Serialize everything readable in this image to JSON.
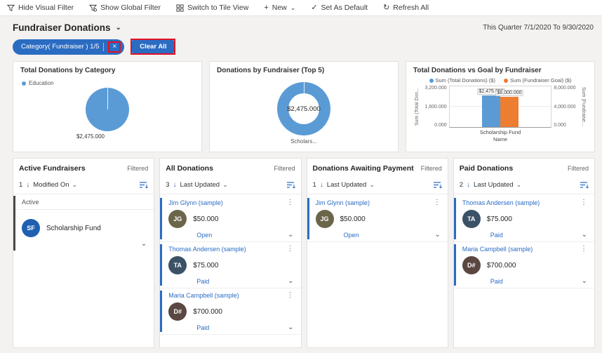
{
  "colors": {
    "accent": "#2b6cc3",
    "chart_blue": "#5b9bd5",
    "chart_orange": "#ed7d31",
    "annotation_red": "#e11123"
  },
  "icons": {
    "plus": "+",
    "check": "✓",
    "refresh": "↻",
    "chevron_down": "⌄",
    "close": "×",
    "kebab": "⋮",
    "sort_desc": "↓"
  },
  "command_bar": {
    "items": [
      {
        "label": "Hide Visual Filter"
      },
      {
        "label": "Show Global Filter"
      },
      {
        "label": "Switch to Tile View"
      },
      {
        "label": "New"
      },
      {
        "label": "Set As Default"
      },
      {
        "label": "Refresh All"
      }
    ]
  },
  "header": {
    "title": "Fundraiser Donations",
    "date_range": "This Quarter 7/1/2020 To 9/30/2020"
  },
  "filter_bar": {
    "chip": "Category( Fundraiser ) 1/5",
    "clear_all": "Clear All"
  },
  "chart_data": [
    {
      "type": "pie",
      "title": "Total Donations by Category",
      "categories": [
        "Education"
      ],
      "values": [
        2475
      ],
      "value_labels": [
        "$2,475.000"
      ],
      "legend": [
        "Education"
      ],
      "legend_position": "top-left"
    },
    {
      "type": "donut",
      "title": "Donations by Fundraiser (Top 5)",
      "categories": [
        "Scholarship Fund"
      ],
      "values": [
        2475
      ],
      "center_label": "$2,475.000",
      "x_tick_label": "Scholars..."
    },
    {
      "type": "bar",
      "title": "Total Donations vs Goal by Fundraiser",
      "categories": [
        "Scholarship Fund"
      ],
      "xlabel": "Name",
      "series": [
        {
          "name": "Sum (Total Donations) ($)",
          "values": [
            2475
          ],
          "label": "$2,475.000",
          "color": "#5b9bd5",
          "axis": "left"
        },
        {
          "name": "Sum (Fundraiser Goal) ($)",
          "values": [
            6000
          ],
          "label": "$6,000.000",
          "color": "#ed7d31",
          "axis": "right"
        }
      ],
      "left_axis": {
        "title": "Sum (Total Don...",
        "ticks": [
          "3,200.000",
          "1,600.000",
          "0.000"
        ],
        "max": 3200
      },
      "right_axis": {
        "title": "Sum (Fundraise...",
        "ticks": [
          "8,000.000",
          "4,000.000",
          "0.000"
        ],
        "max": 8000
      },
      "grid": true,
      "legend_position": "top-center"
    }
  ],
  "streams": [
    {
      "title": "Active Fundraisers",
      "filtered": "Filtered",
      "count": "1",
      "sort_field": "Modified On",
      "group": "Active",
      "items": [
        {
          "initials": "SF",
          "avatar_color": "#1f5fb0",
          "name": "Scholarship Fund"
        }
      ]
    },
    {
      "title": "All Donations",
      "filtered": "Filtered",
      "count": "3",
      "sort_field": "Last Updated",
      "items": [
        {
          "name": "Jim Glynn (sample)",
          "initials": "JG",
          "avatar_color": "#6b6649",
          "amount": "$50.000",
          "status": "Open"
        },
        {
          "name": "Thomas Andersen (sample)",
          "initials": "TA",
          "avatar_color": "#3b5166",
          "amount": "$75.000",
          "status": "Paid"
        },
        {
          "name": "Maria Campbell (sample)",
          "initials": "D#",
          "avatar_color": "#5a4742",
          "amount": "$700.000",
          "status": "Paid"
        }
      ]
    },
    {
      "title": "Donations Awaiting Payment",
      "filtered": "Filtered",
      "count": "1",
      "sort_field": "Last Updated",
      "items": [
        {
          "name": "Jim Glynn (sample)",
          "initials": "JG",
          "avatar_color": "#6b6649",
          "amount": "$50.000",
          "status": "Open"
        }
      ]
    },
    {
      "title": "Paid Donations",
      "filtered": "Filtered",
      "count": "2",
      "sort_field": "Last Updated",
      "items": [
        {
          "name": "Thomas Andersen (sample)",
          "initials": "TA",
          "avatar_color": "#3b5166",
          "amount": "$75.000",
          "status": "Paid"
        },
        {
          "name": "Maria Campbell (sample)",
          "initials": "D#",
          "avatar_color": "#5a4742",
          "amount": "$700.000",
          "status": "Paid"
        }
      ]
    }
  ]
}
